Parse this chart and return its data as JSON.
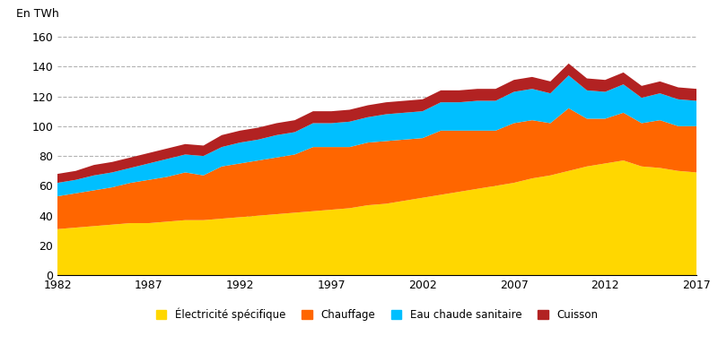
{
  "years": [
    1982,
    1983,
    1984,
    1985,
    1986,
    1987,
    1988,
    1989,
    1990,
    1991,
    1992,
    1993,
    1994,
    1995,
    1996,
    1997,
    1998,
    1999,
    2000,
    2001,
    2002,
    2003,
    2004,
    2005,
    2006,
    2007,
    2008,
    2009,
    2010,
    2011,
    2012,
    2013,
    2014,
    2015,
    2016,
    2017
  ],
  "electricite_specifique": [
    31,
    32,
    33,
    34,
    35,
    35,
    36,
    37,
    37,
    38,
    39,
    40,
    41,
    42,
    43,
    44,
    45,
    47,
    48,
    50,
    52,
    54,
    56,
    58,
    60,
    62,
    65,
    67,
    70,
    73,
    75,
    77,
    73,
    72,
    70,
    69
  ],
  "chauffage": [
    22,
    23,
    24,
    25,
    27,
    29,
    30,
    32,
    30,
    35,
    36,
    37,
    38,
    39,
    43,
    42,
    41,
    42,
    42,
    41,
    40,
    43,
    41,
    39,
    37,
    40,
    39,
    35,
    42,
    32,
    30,
    32,
    29,
    32,
    30,
    31
  ],
  "eau_chaude_sanitaire": [
    9,
    9,
    10,
    10,
    10,
    11,
    12,
    12,
    13,
    13,
    14,
    14,
    15,
    15,
    16,
    16,
    17,
    17,
    18,
    18,
    18,
    19,
    19,
    20,
    20,
    21,
    21,
    20,
    22,
    19,
    18,
    19,
    17,
    18,
    18,
    17
  ],
  "cuisson": [
    6,
    6,
    7,
    7,
    7,
    7,
    7,
    7,
    7,
    8,
    8,
    8,
    8,
    8,
    8,
    8,
    8,
    8,
    8,
    8,
    8,
    8,
    8,
    8,
    8,
    8,
    8,
    8,
    8,
    8,
    8,
    8,
    8,
    8,
    8,
    8
  ],
  "colors": {
    "electricite_specifique": "#FFD700",
    "chauffage": "#FF6600",
    "eau_chaude_sanitaire": "#00BFFF",
    "cuisson": "#B22222"
  },
  "ylabel": "En TWh",
  "ylim": [
    0,
    168
  ],
  "yticks": [
    0,
    20,
    40,
    60,
    80,
    100,
    120,
    140,
    160
  ],
  "xticks": [
    1982,
    1987,
    1992,
    1997,
    2002,
    2007,
    2012,
    2017
  ],
  "legend_labels": [
    "Électricité spécifique",
    "Chauffage",
    "Eau chaude sanitaire",
    "Cuisson"
  ],
  "background_color": "#ffffff"
}
